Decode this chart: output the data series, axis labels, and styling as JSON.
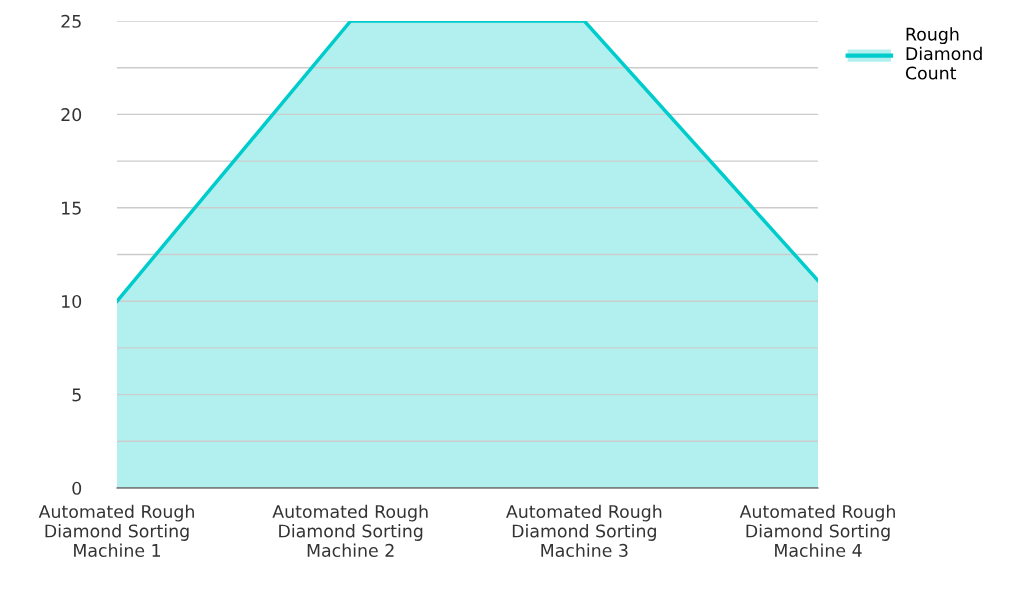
{
  "chart_data": {
    "type": "area",
    "categories": [
      "Automated Rough Diamond Sorting Machine 1",
      "Automated Rough Diamond Sorting Machine 2",
      "Automated Rough Diamond Sorting Machine 3",
      "Automated Rough Diamond Sorting Machine 4"
    ],
    "series": [
      {
        "name": "Rough Diamond Count",
        "color": "#00cccc",
        "values": [
          10,
          25,
          25,
          11.1
        ]
      }
    ],
    "ylim": [
      0,
      25
    ],
    "yticks": [
      0,
      {
        "value": 2.5,
        "label": null
      },
      5,
      {
        "value": 7.5,
        "label": null
      },
      10,
      {
        "value": 12.5,
        "label": null
      },
      15,
      {
        "value": 17.5,
        "label": null
      },
      20,
      {
        "value": 22.5,
        "label": null
      },
      25
    ],
    "grid": "y",
    "legend": "top right"
  }
}
